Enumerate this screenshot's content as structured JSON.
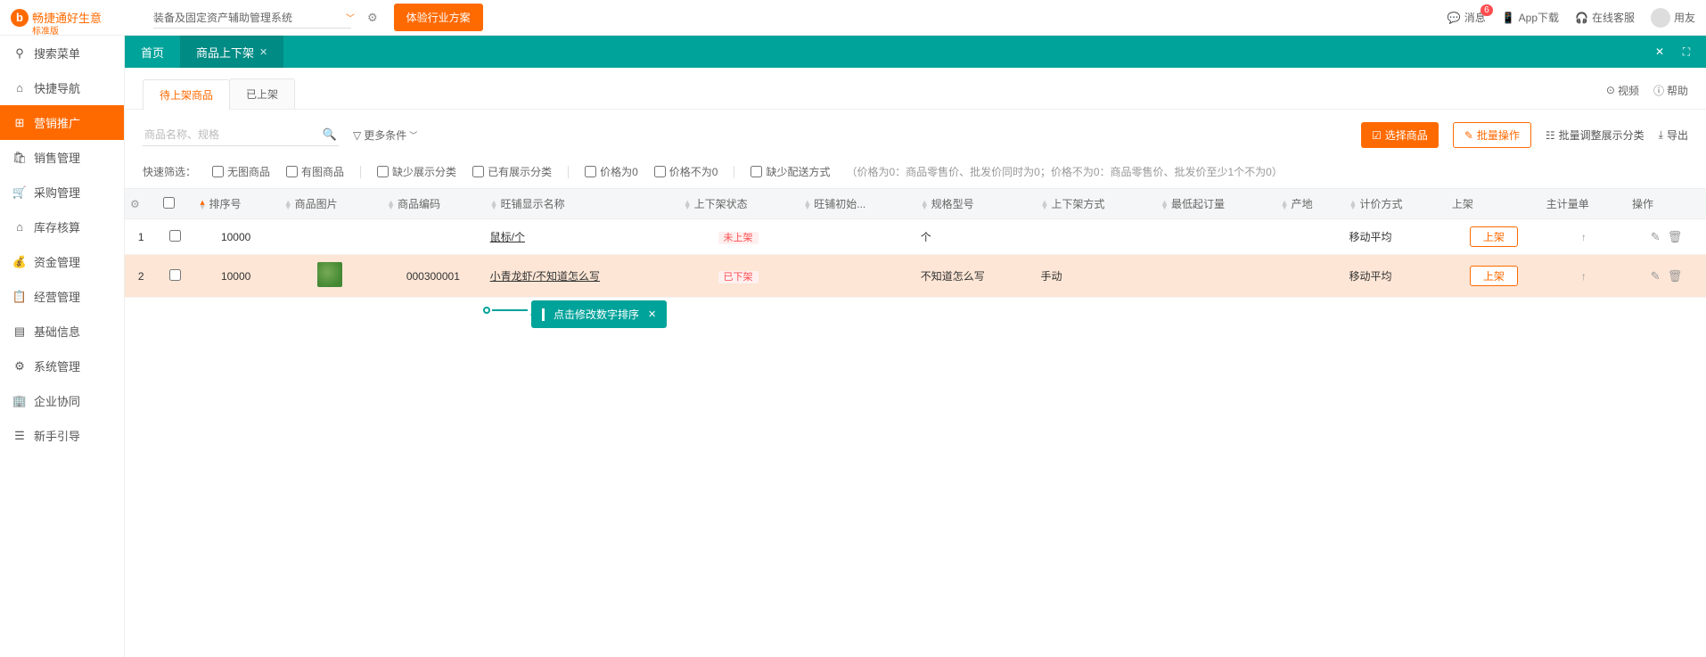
{
  "header": {
    "logo_text": "畅捷通好生意",
    "logo_sub": "标准版",
    "system_name": "装备及固定资产辅助管理系统",
    "trial_btn": "体验行业方案",
    "msg_label": "消息",
    "msg_badge": "6",
    "app_label": "App下载",
    "service_label": "在线客服",
    "user_label": "用友"
  },
  "sidebar": {
    "items": [
      {
        "icon": "⚲",
        "label": "搜索菜单"
      },
      {
        "icon": "⌂",
        "label": "快捷导航"
      },
      {
        "icon": "⊞",
        "label": "营销推广"
      },
      {
        "icon": "🛍",
        "label": "销售管理"
      },
      {
        "icon": "🛒",
        "label": "采购管理"
      },
      {
        "icon": "⌂",
        "label": "库存核算"
      },
      {
        "icon": "💰",
        "label": "资金管理"
      },
      {
        "icon": "📋",
        "label": "经营管理"
      },
      {
        "icon": "▤",
        "label": "基础信息"
      },
      {
        "icon": "⚙",
        "label": "系统管理"
      },
      {
        "icon": "🏢",
        "label": "企业协同"
      },
      {
        "icon": "☰",
        "label": "新手引导"
      }
    ],
    "active_index": 2
  },
  "tabs": {
    "items": [
      {
        "label": "首页",
        "closable": false
      },
      {
        "label": "商品上下架",
        "closable": true
      }
    ],
    "active_index": 1
  },
  "subtabs": {
    "items": [
      "待上架商品",
      "已上架"
    ],
    "active_index": 0,
    "video": "视频",
    "help": "帮助"
  },
  "toolbar": {
    "search_placeholder": "商品名称、规格",
    "more_cond": "更多条件",
    "select_goods": "选择商品",
    "batch_op": "批量操作",
    "batch_cat": "批量调整展示分类",
    "export": "导出"
  },
  "filters": {
    "label": "快速筛选：",
    "items": [
      "无图商品",
      "有图商品",
      "缺少展示分类",
      "已有展示分类",
      "价格为0",
      "价格不为0",
      "缺少配送方式"
    ],
    "hint": "（价格为0：商品零售价、批发价同时为0；价格不为0：商品零售价、批发价至少1个不为0）"
  },
  "table": {
    "columns": [
      "",
      "",
      "排序号",
      "商品图片",
      "商品编码",
      "旺铺显示名称",
      "上下架状态",
      "旺铺初始...",
      "规格型号",
      "上下架方式",
      "最低起订量",
      "产地",
      "计价方式",
      "上架",
      "主计量单",
      "操作"
    ],
    "rows": [
      {
        "idx": "1",
        "sort": "10000",
        "code": "",
        "name": "鼠标/个",
        "status": "未上架",
        "spec": "个",
        "method": "",
        "pricing": "移动平均",
        "has_img": false
      },
      {
        "idx": "2",
        "sort": "10000",
        "code": "000300001",
        "name": "小青龙虾/不知道怎么写",
        "status": "已下架",
        "spec": "不知道怎么写",
        "method": "手动",
        "pricing": "移动平均",
        "has_img": true
      }
    ],
    "shelf_btn": "上架"
  },
  "tooltip": {
    "text": "点击修改数字排序"
  },
  "colors": {
    "primary": "#ff6a00",
    "teal": "#00a39a",
    "teal_dark": "#008b84"
  }
}
